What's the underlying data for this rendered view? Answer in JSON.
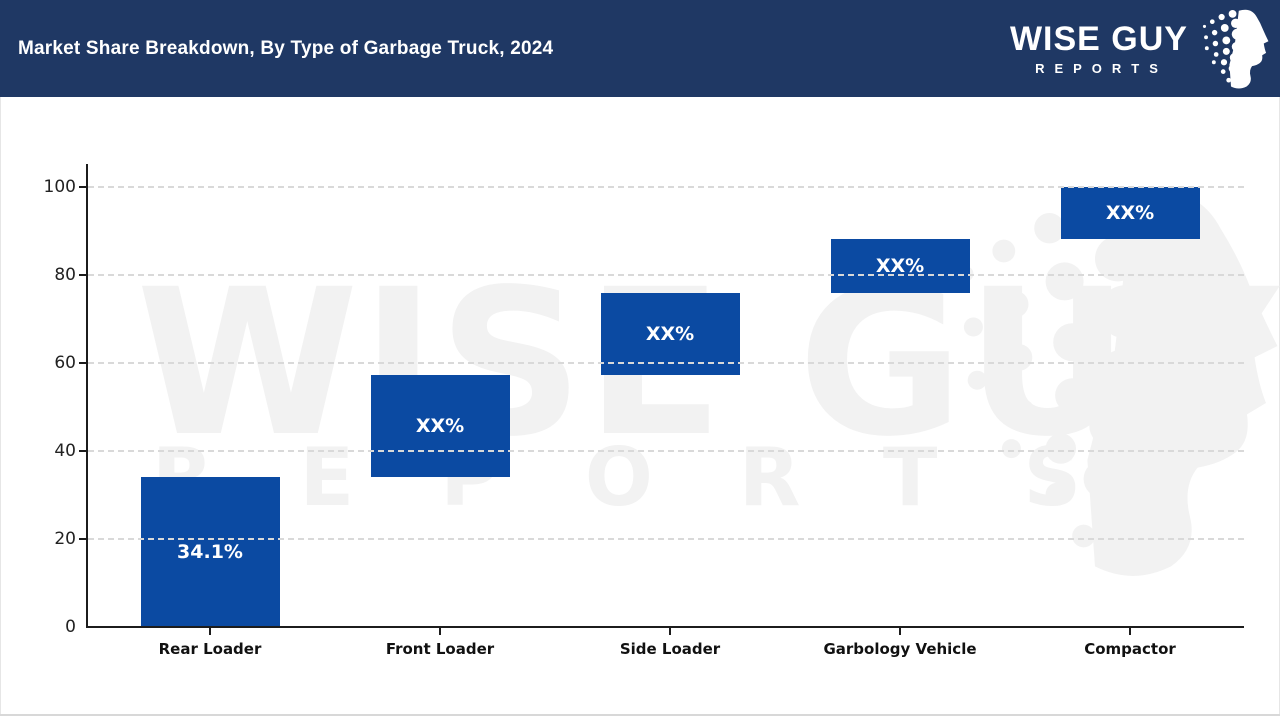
{
  "header": {
    "title": "Market Share Breakdown, By Type of Garbage Truck, 2024",
    "logo": {
      "name": "WISE GUY",
      "sub": "REPORTS"
    }
  },
  "watermark": {
    "name": "WISE GUY",
    "sub": "REPORTS"
  },
  "chart_data": {
    "type": "bar",
    "subtype": "waterfall",
    "title": "Market Share Breakdown, By Type of Garbage Truck, 2024",
    "categories": [
      "Rear Loader",
      "Front Loader",
      "Side Loader",
      "Garbology Vehicle",
      "Compactor"
    ],
    "segments": [
      {
        "category": "Rear Loader",
        "start": 0,
        "end": 34.1,
        "label": "34.1%"
      },
      {
        "category": "Front Loader",
        "start": 34.1,
        "end": 57.3,
        "label": "XX%"
      },
      {
        "category": "Side Loader",
        "start": 57.3,
        "end": 76.0,
        "label": "XX%"
      },
      {
        "category": "Garbology Vehicle",
        "start": 76.0,
        "end": 88.2,
        "label": "XX%"
      },
      {
        "category": "Compactor",
        "start": 88.2,
        "end": 100.0,
        "label": "XX%"
      }
    ],
    "xlabel": "",
    "ylabel": "",
    "yticks": [
      0,
      20,
      40,
      60,
      80,
      100
    ],
    "ylim": [
      0,
      105
    ],
    "grid": {
      "axis": "y",
      "style": "dashed",
      "color": "#d9d9d9",
      "on_top_of_bars": true
    },
    "legend": "none",
    "colors": {
      "bar": "#0b4aa2",
      "bar_label": "#ffffff",
      "header_bg": "#1f3864",
      "axis": "#1c1c1c",
      "watermark": "#f2f2f2"
    }
  }
}
